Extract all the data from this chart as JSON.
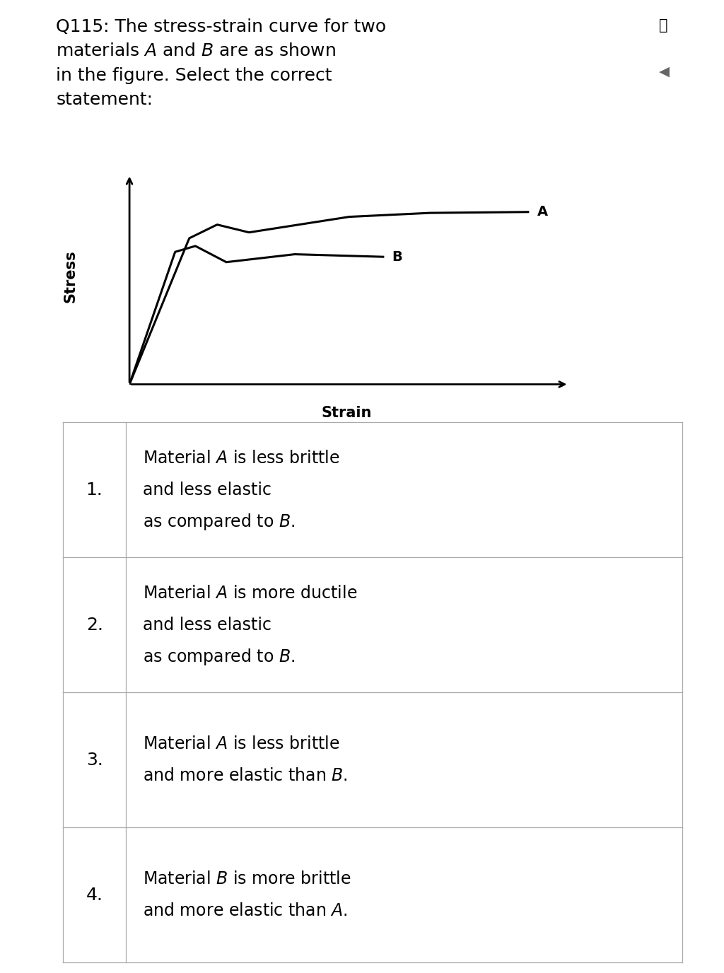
{
  "title_text": "Q115: The stress-strain curve for two\nmaterials $A$ and $B$ are as shown\nin the figure. Select the correct\nstatement:",
  "xlabel": "Strain",
  "ylabel": "Stress",
  "curve_A_label": "A",
  "curve_B_label": "B",
  "options": [
    {
      "num": "1.",
      "text_lines": [
        "Material $A$ is less brittle",
        "and less elastic",
        "as compared to $B$."
      ]
    },
    {
      "num": "2.",
      "text_lines": [
        "Material $A$ is more ductile",
        "and less elastic",
        "as compared to $B$."
      ]
    },
    {
      "num": "3.",
      "text_lines": [
        "Material $A$ is less brittle",
        "and more elastic than $B$."
      ]
    },
    {
      "num": "4.",
      "text_lines": [
        "Material $B$ is more brittle",
        "and more elastic than $A$."
      ]
    }
  ],
  "bg_color": "#ffffff",
  "text_color": "#000000",
  "curve_color": "#000000",
  "line_color": "#aaaaaa",
  "font_size_title": 18,
  "font_size_options": 17,
  "font_size_num": 18,
  "font_size_axis_label": 13,
  "fig_width": 10.24,
  "fig_height": 13.76
}
